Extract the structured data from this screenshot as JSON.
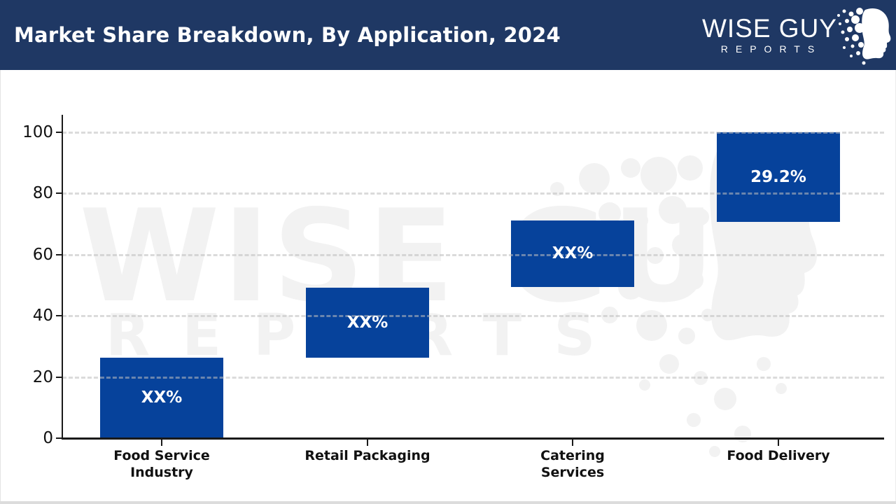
{
  "header": {
    "title": "Market Share Breakdown, By Application, 2024",
    "logo": {
      "line1": "WISE GUY",
      "line2": "REPORTS"
    }
  },
  "watermark": {
    "line1": "WISE GUY",
    "line2": "REPORTS"
  },
  "chart_data": {
    "type": "bar",
    "subtype": "waterfall-floating-segments",
    "title": "Market Share Breakdown, By Application, 2024",
    "categories": [
      "Food Service Industry",
      "Retail Packaging",
      "Catering Services",
      "Food Delivery"
    ],
    "segments": [
      {
        "category": "Food Service Industry",
        "start": 0,
        "end": 26.4,
        "label": "XX%"
      },
      {
        "category": "Retail Packaging",
        "start": 26.4,
        "end": 49.3,
        "label": "XX%"
      },
      {
        "category": "Catering Services",
        "start": 49.4,
        "end": 71.2,
        "label": "XX%"
      },
      {
        "category": "Food Delivery",
        "start": 70.8,
        "end": 100,
        "label": "29.2%"
      }
    ],
    "yticks": [
      0,
      20,
      40,
      60,
      80,
      100
    ],
    "ylim": [
      0,
      100
    ],
    "xlabel": "",
    "ylabel": "",
    "grid": "horizontal-dashed",
    "legend": "none",
    "bar_color": "#06429b",
    "bar_label_color": "#ffffff",
    "axis_color": "#1a1a1a",
    "header_bg_color": "#1f3864",
    "watermark_color": "#f2f2f2"
  }
}
